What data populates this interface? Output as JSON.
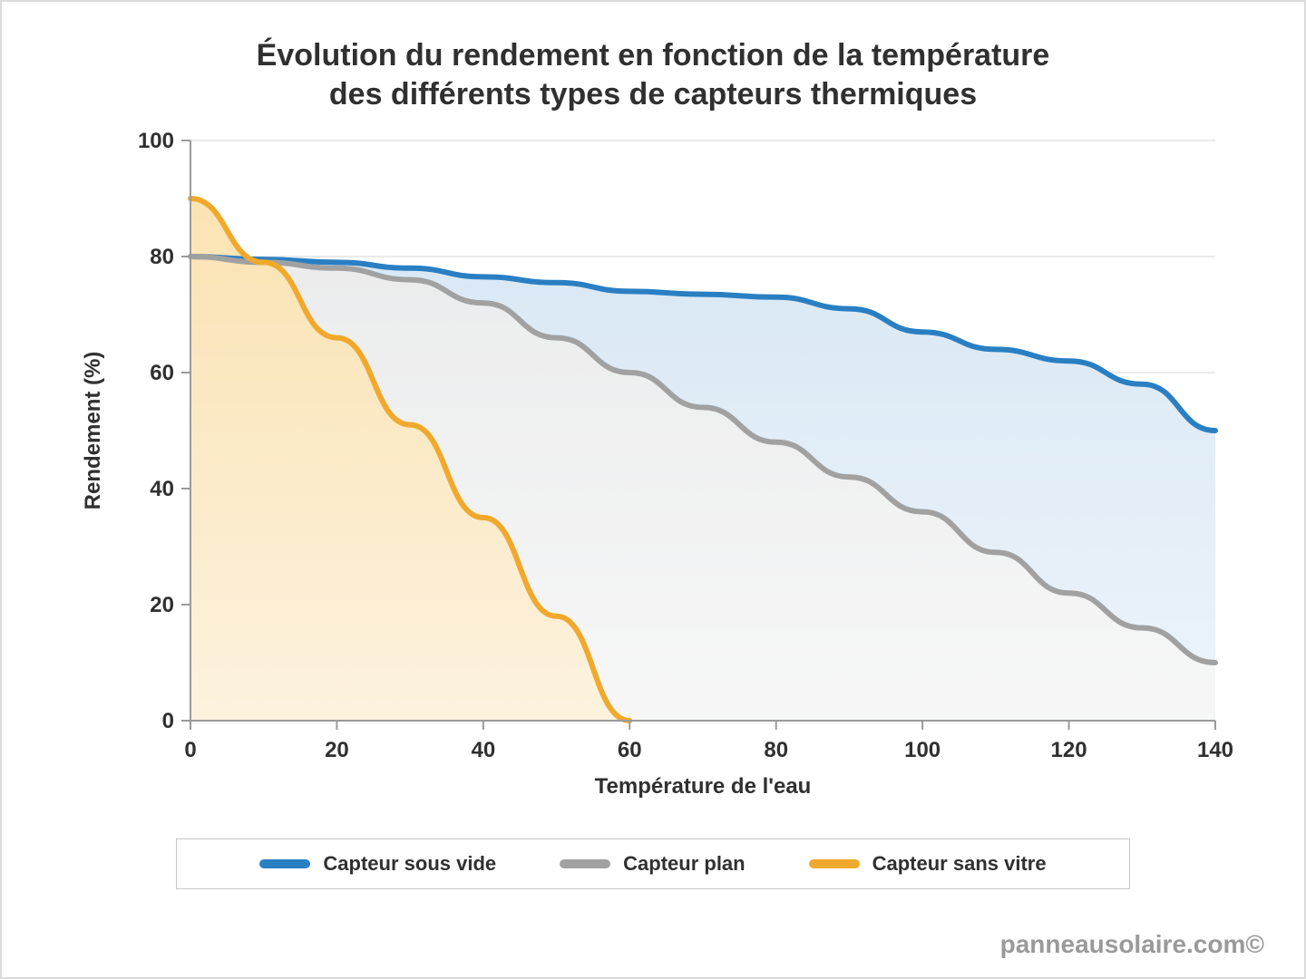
{
  "title_line1": "Évolution du rendement en fonction de la température",
  "title_line2": "des différents types de capteurs thermiques",
  "title_fontsize": 34,
  "title_color": "#303030",
  "credit": "panneausolaire.com©",
  "credit_fontsize": 28,
  "credit_color": "#9a9a9a",
  "chart": {
    "type": "area",
    "background_color": "#ffffff",
    "plot_border_color": "#9a9a9a",
    "plot_border_width": 2,
    "grid_color": "#d7d7d7",
    "grid_width": 1,
    "xlabel": "Température de l'eau",
    "ylabel": "Rendement (%)",
    "axis_label_fontsize": 24,
    "axis_label_color": "#303030",
    "tick_fontsize": 24,
    "tick_color": "#303030",
    "tick_font_weight": 700,
    "xlim": [
      0,
      140
    ],
    "ylim": [
      0,
      100
    ],
    "xticks": [
      0,
      20,
      40,
      60,
      80,
      100,
      120,
      140
    ],
    "yticks": [
      0,
      20,
      40,
      60,
      80,
      100
    ],
    "line_width": 6,
    "series": [
      {
        "name": "Capteur sous vide",
        "stroke": "#2a7fc3",
        "fill_top": "#d7e7f4",
        "fill_bottom": "#ecf3fa",
        "x": [
          0,
          10,
          20,
          30,
          40,
          50,
          60,
          70,
          80,
          90,
          100,
          110,
          120,
          130,
          140
        ],
        "y": [
          80,
          79.5,
          79,
          78,
          76.5,
          75.5,
          74,
          73.5,
          73,
          71,
          67,
          64,
          62,
          58,
          50
        ]
      },
      {
        "name": "Capteur plan",
        "stroke": "#a1a1a1",
        "fill_top": "#ececec",
        "fill_bottom": "#f7f7f7",
        "x": [
          0,
          10,
          20,
          30,
          40,
          50,
          60,
          70,
          80,
          90,
          100,
          110,
          120,
          130,
          140
        ],
        "y": [
          80,
          79,
          78,
          76,
          72,
          66,
          60,
          54,
          48,
          42,
          36,
          29,
          22,
          16,
          10
        ]
      },
      {
        "name": "Capteur sans vitre",
        "stroke": "#f0a92c",
        "fill_top": "#fbe2af",
        "fill_bottom": "#fdf2dd",
        "x": [
          0,
          10,
          20,
          30,
          40,
          50,
          60
        ],
        "y": [
          90,
          79,
          66,
          51,
          35,
          18,
          0
        ]
      }
    ]
  },
  "legend": {
    "border_color": "#c7c7c7",
    "fontsize": 22,
    "items": [
      {
        "label": "Capteur sous vide",
        "color": "#2a7fc3"
      },
      {
        "label": "Capteur plan",
        "color": "#a1a1a1"
      },
      {
        "label": "Capteur sans vitre",
        "color": "#f0a92c"
      }
    ]
  }
}
